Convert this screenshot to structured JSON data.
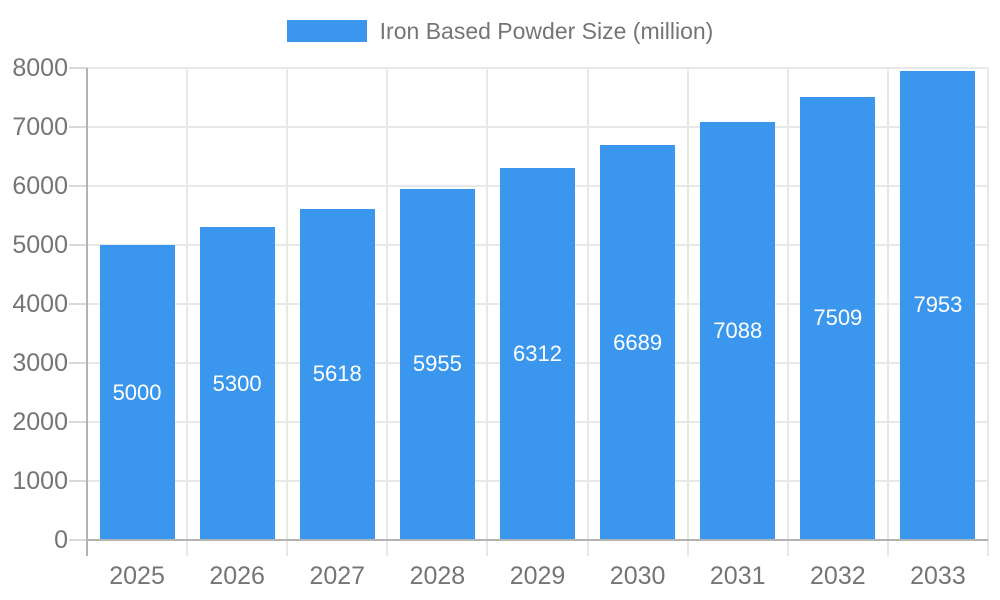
{
  "chart": {
    "legend_label": "Iron Based Powder Size (million)"
  },
  "colors": {
    "bar": "#3b97ed",
    "bar_label_text": "#ffffff",
    "axis_text": "#757575",
    "gridline": "#e8e8e8",
    "axis_line": "#b3b3b3",
    "tick": "#d9d9d9",
    "background": "#ffffff"
  },
  "chart_data": {
    "type": "bar",
    "title": "Iron Based Powder Size (million)",
    "categories": [
      "2025",
      "2026",
      "2027",
      "2028",
      "2029",
      "2030",
      "2031",
      "2032",
      "2033"
    ],
    "values": [
      5000,
      5300,
      5618,
      5955,
      6312,
      6689,
      7088,
      7509,
      7953
    ],
    "series_name": "Iron Based Powder Size (million)",
    "xlabel": "",
    "ylabel": "",
    "ylim": [
      0,
      8000
    ],
    "ytick_step": 1000,
    "ytick_labels": [
      "0",
      "1000",
      "2000",
      "3000",
      "4000",
      "5000",
      "6000",
      "7000",
      "8000"
    ],
    "grid": true,
    "legend_position": "top",
    "bar_value_labels": true
  }
}
